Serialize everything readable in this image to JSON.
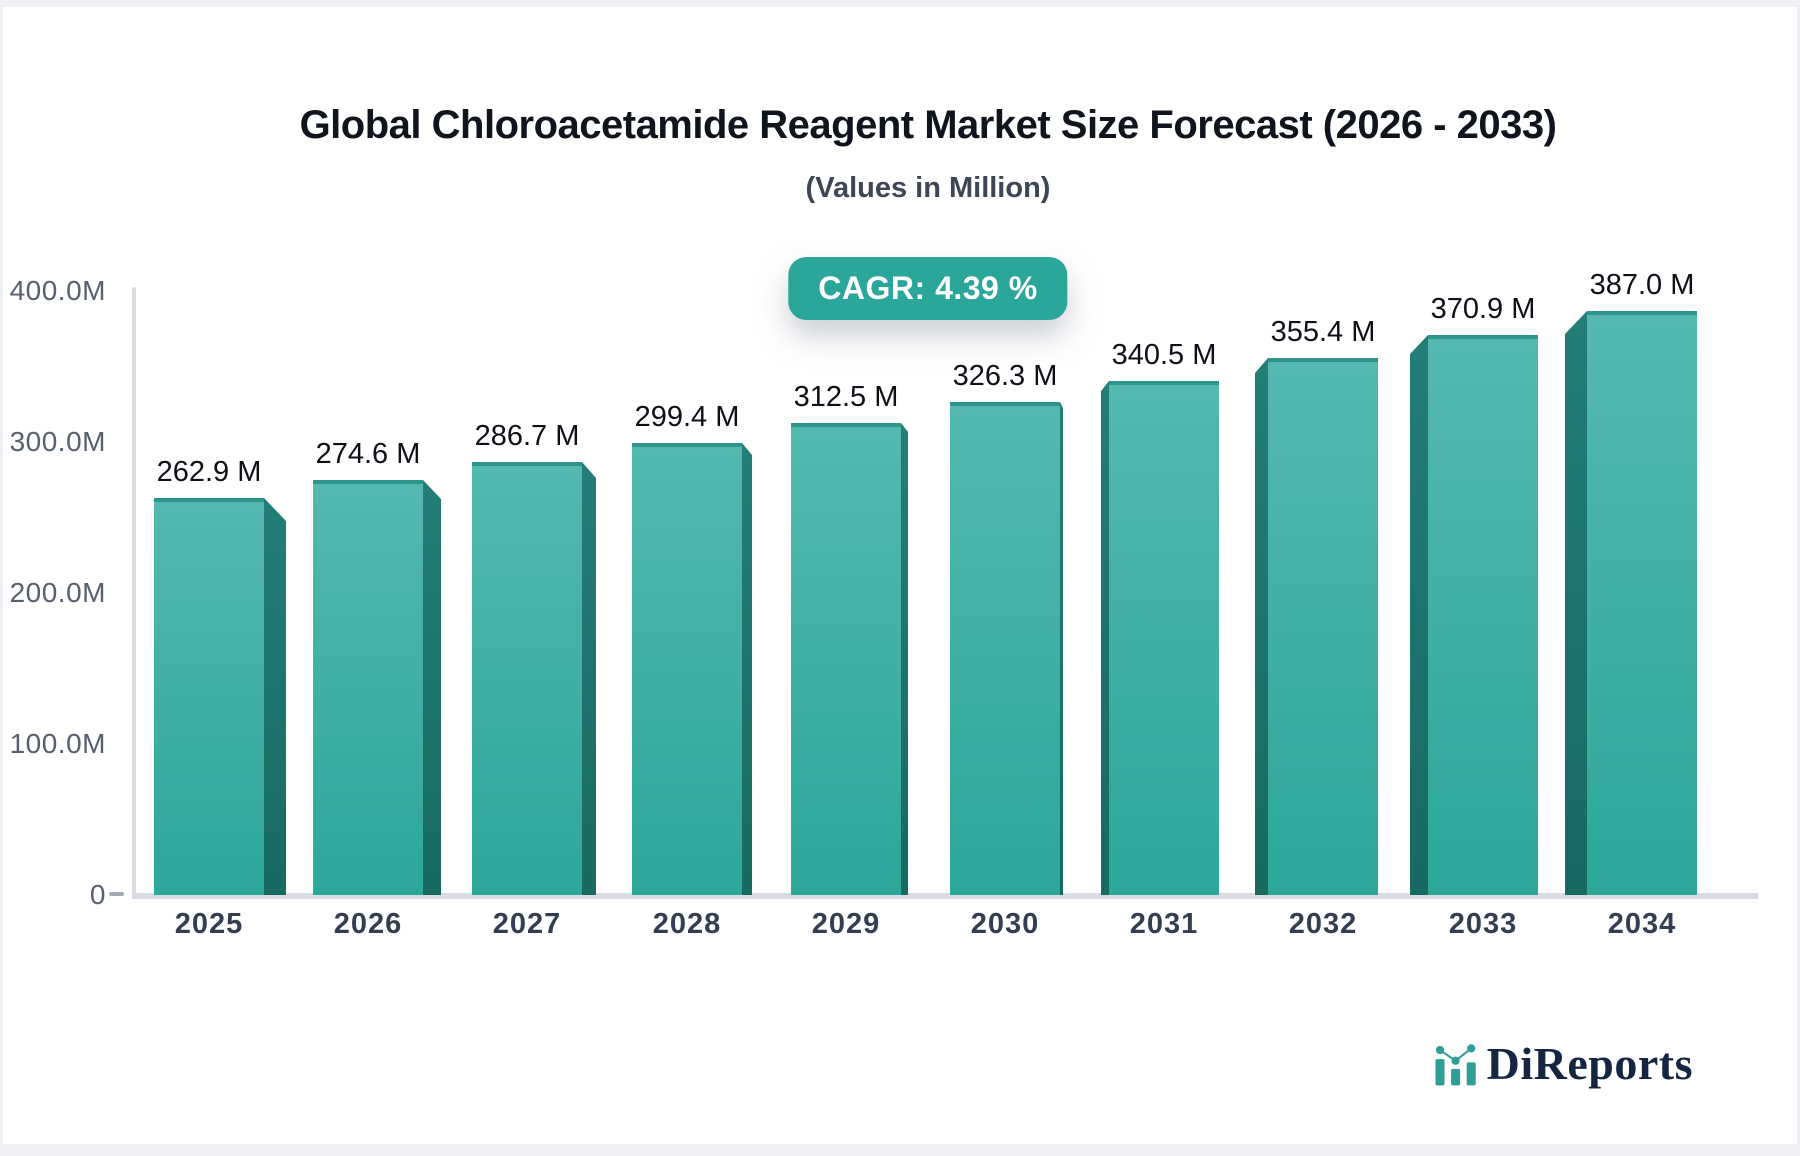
{
  "header": {
    "title": "Global Chloroacetamide Reagent Market Size Forecast (2026 - 2033)",
    "subtitle": "(Values in Million)",
    "cagr_badge": "CAGR: 4.39 %"
  },
  "chart_data": {
    "type": "bar",
    "title": "Global Chloroacetamide Reagent Market Size Forecast (2026 - 2033)",
    "subtitle": "(Values in Million)",
    "unit": "Million",
    "cagr_percent": 4.39,
    "categories": [
      "2025",
      "2026",
      "2027",
      "2028",
      "2029",
      "2030",
      "2031",
      "2032",
      "2033",
      "2034"
    ],
    "values": [
      262.9,
      274.6,
      286.7,
      299.4,
      312.5,
      326.3,
      340.5,
      355.4,
      370.9,
      387.0
    ],
    "value_labels": [
      "262.9 M",
      "274.6 M",
      "286.7 M",
      "299.4 M",
      "312.5 M",
      "326.3 M",
      "340.5 M",
      "355.4 M",
      "370.9 M",
      "387.0 M"
    ],
    "xlabel": "",
    "ylabel": "",
    "ylim": [
      0,
      400
    ],
    "grid": "off",
    "legend": "none",
    "y_axis": {
      "tick_values": [
        400,
        300,
        200,
        100,
        0
      ],
      "tick_labels": [
        "400.0M",
        "300.0M",
        "200.0M",
        "100.0M",
        "0"
      ]
    },
    "colors": {
      "bar_face_top": "#54b8ae",
      "bar_face_bottom": "#2ca79a",
      "bar_side_top": "#227e77",
      "bar_side_bottom": "#186a61",
      "bar_top_edge": "#2d958c",
      "badge_background": "#2aa69b",
      "axis_line": "#d8dbe2"
    }
  },
  "footer": {
    "logo_text": "DiReports",
    "logo_icon": "mini-bar-chart-icon"
  }
}
